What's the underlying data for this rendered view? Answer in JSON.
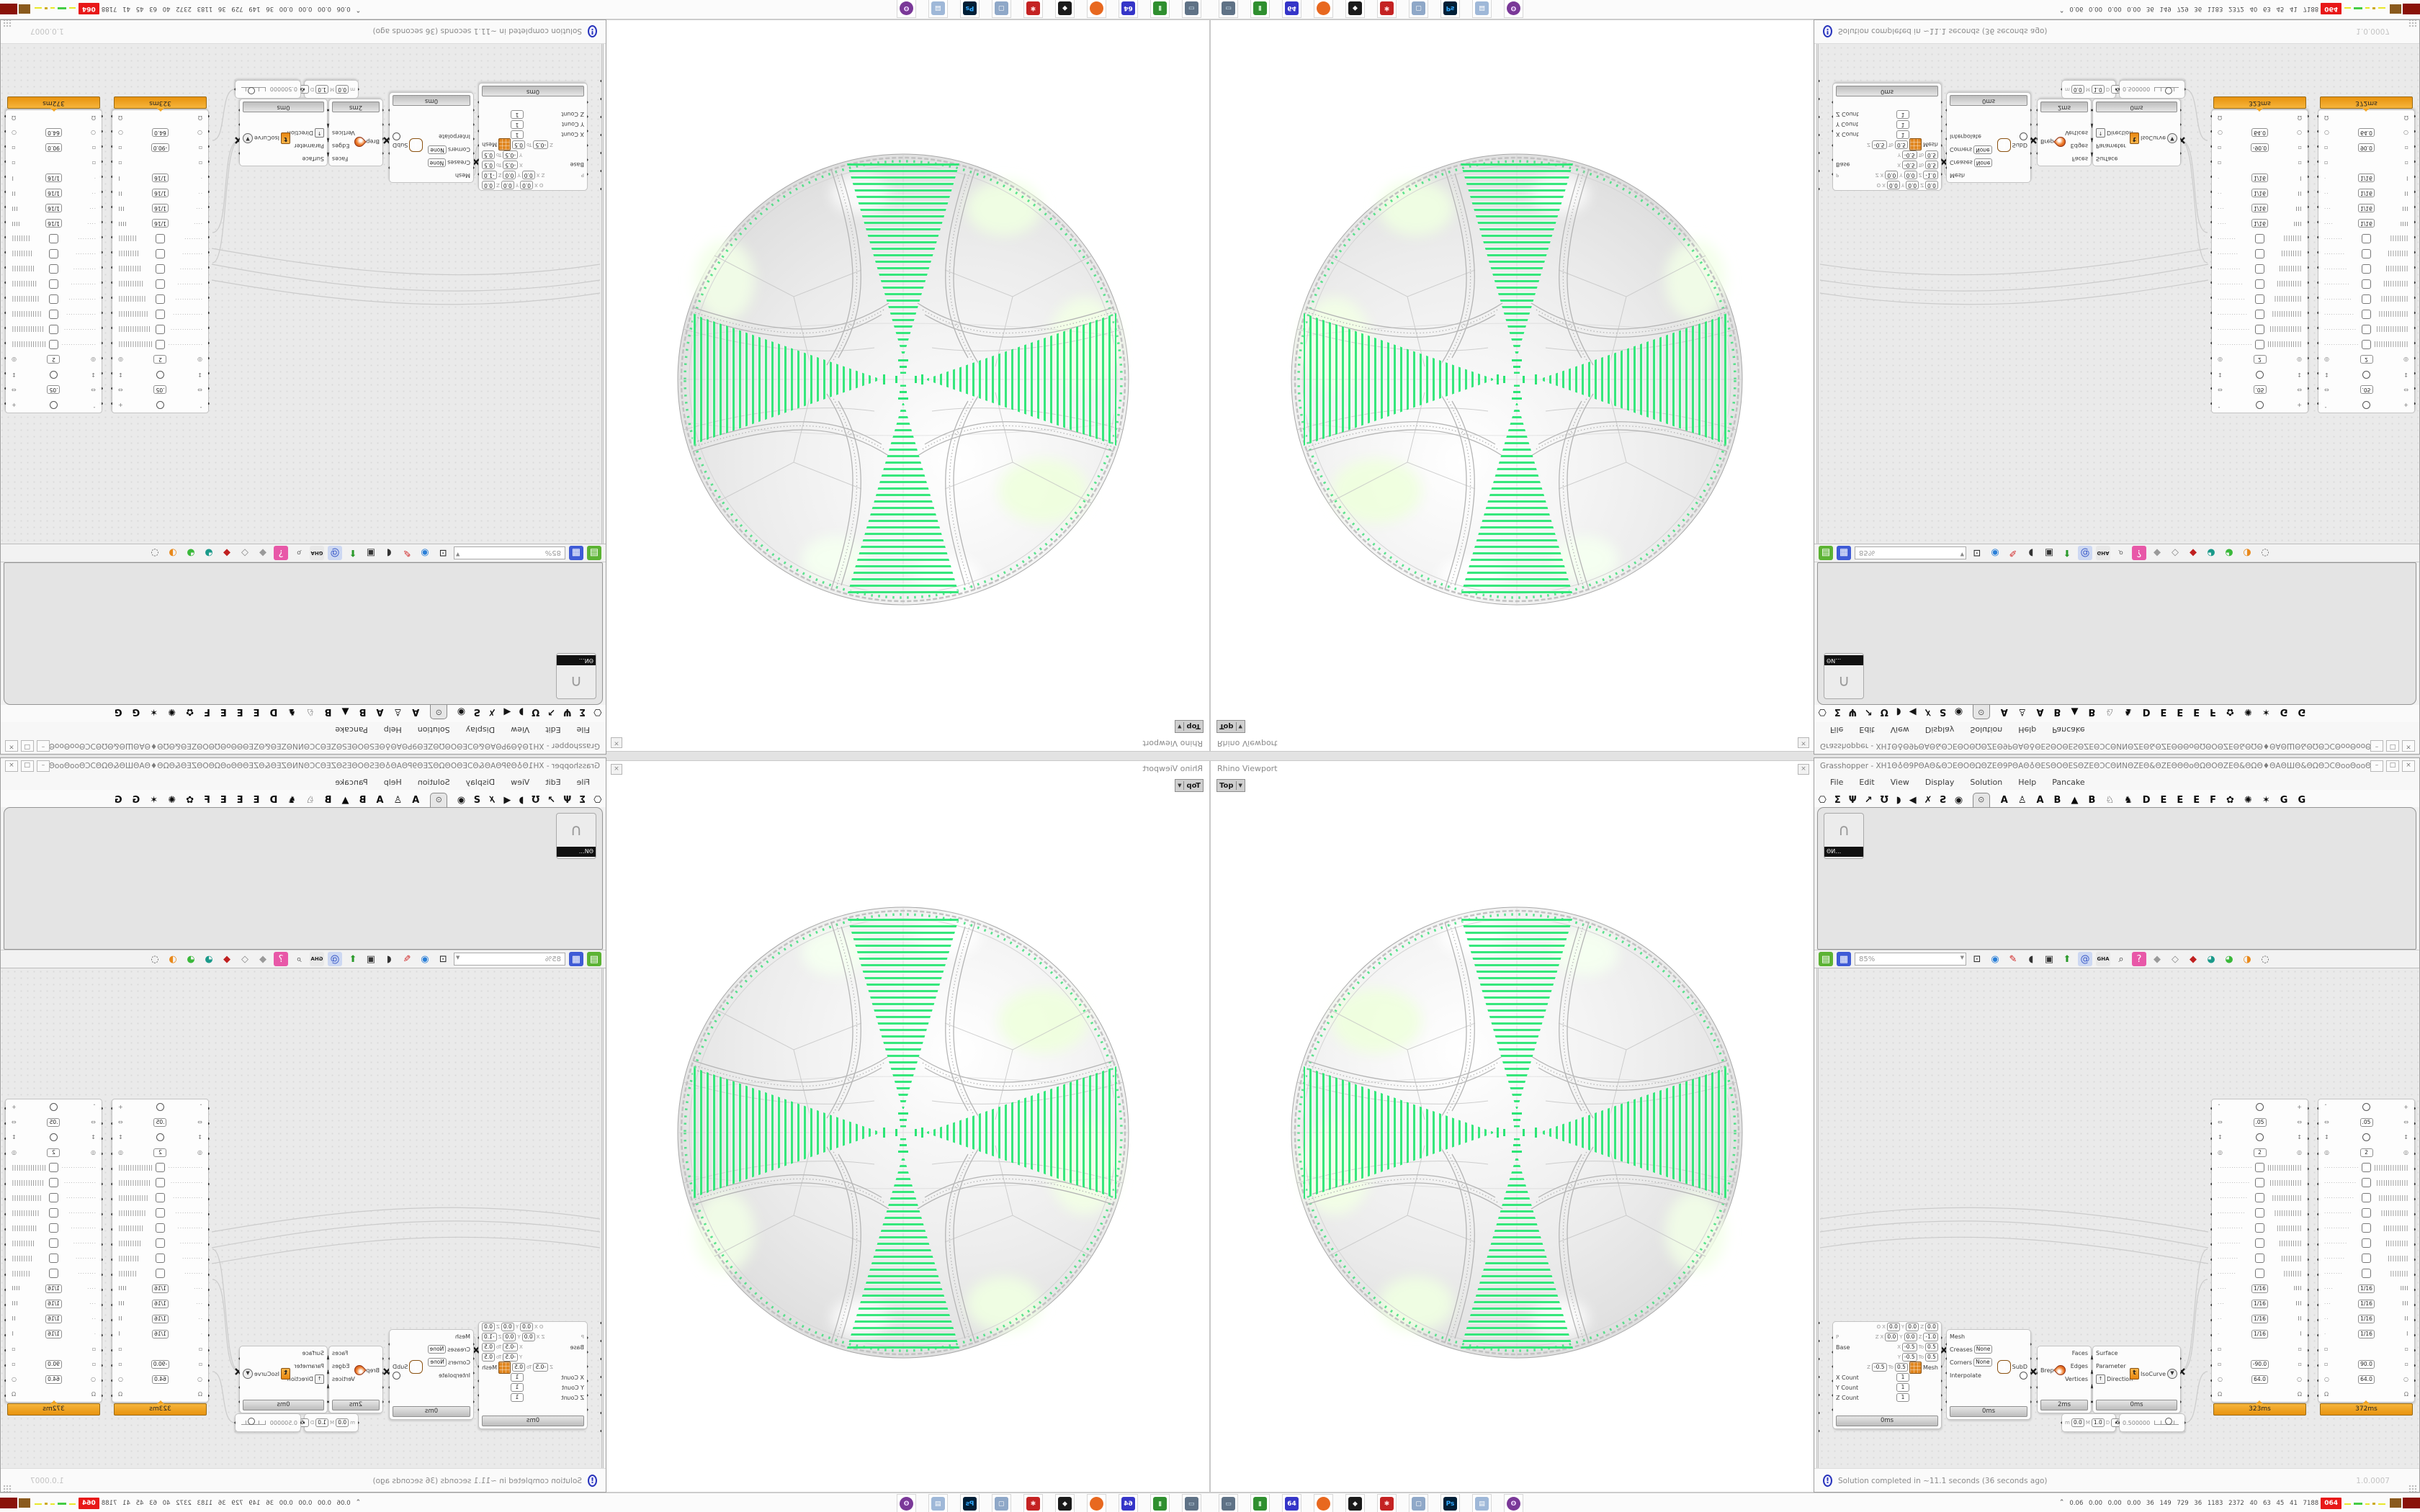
{
  "desktop": {
    "bg": "#e3e3e3"
  },
  "viewport": {
    "title": "Rhino Viewport",
    "close_glyph": "×",
    "view_tab": "Top",
    "dropdown_glyph": "▼"
  },
  "sphere": {
    "green": "#2be575",
    "wire": "#b9b9b9",
    "rim_green": "#3fdf7c"
  },
  "gh": {
    "title": "Grasshopper - XH1Θ♁Θ9ΡΘΑΘ&ΘϽΕΘΟΘΩΘΖΕΘ9ΡΘΑΘ♁ΘΕSΘΟΘΕSΘΖΕΘϽϹΘͶΝΘΖΕΘ&ΘΖΕΘΘΘοΘΩΘΟΘΖΕΘ&ΘΩΘ♦ΘΑΘШΘ&ΘΩΘϽϹΘοοΘοοΘϽΘοΘοΘοοΘοΘοοϽ…",
    "window_buttons": {
      "min": "–",
      "max": "□",
      "close": "×"
    },
    "menus": [
      "File",
      "Edit",
      "View",
      "Display",
      "Solution",
      "Help",
      "Pancake"
    ],
    "tab_glyphs": [
      "⎔",
      "Σ",
      "Ψ",
      "↗",
      "Ʊ",
      "◗",
      "◀",
      "✗",
      "Ƨ",
      "◉"
    ],
    "selected_tab_glyph": "⊙",
    "plugin_tabs": [
      "A",
      "♙",
      "A",
      "B",
      "▲",
      "B",
      "♘",
      "♞",
      "D",
      "E",
      "E",
      "E",
      "F",
      "✿",
      "✺",
      "✶",
      "G",
      "G"
    ],
    "shelf_item": {
      "icon": "∩",
      "label": "ΘͶ…"
    },
    "toolbar": {
      "zoom": "85%",
      "dropdown": "▼",
      "icons": [
        {
          "n": "open-file-icon",
          "g": "▤",
          "bg": "#5cb334",
          "fg": "#ffffff"
        },
        {
          "n": "save-file-icon",
          "g": "▦",
          "bg": "#3f5bd6",
          "fg": "#ffffff"
        },
        {
          "n": "zoom-extents-icon",
          "g": "⊡",
          "bg": "",
          "fg": "#1a1a1a"
        },
        {
          "n": "preview-eye-icon",
          "g": "◉",
          "bg": "",
          "fg": "#2a7fd8"
        },
        {
          "n": "sketch-pen-icon",
          "g": "✎",
          "bg": "",
          "fg": "#d02020"
        },
        {
          "n": "lamp-icon",
          "g": "◖",
          "bg": "",
          "fg": "#333333"
        },
        {
          "n": "camera-icon",
          "g": "▣",
          "bg": "",
          "fg": "#333333"
        },
        {
          "n": "axes-widget-icon",
          "g": "⬆",
          "bg": "",
          "fg": "#2a9a2a"
        },
        {
          "n": "internet-icon",
          "g": "@",
          "bg": "#cdd8f2",
          "fg": "#3858c8"
        },
        {
          "n": "gha-icon",
          "g": "GHA",
          "bg": "#e8e8e8",
          "fg": "#222222"
        },
        {
          "n": "find-component-icon",
          "g": "⌕",
          "bg": "",
          "fg": "#333333"
        },
        {
          "n": "unknown-box-icon",
          "g": "?",
          "bg": "#e858a8",
          "fg": "#ffffff"
        },
        {
          "n": "gem-gray-icon",
          "g": "◆",
          "bg": "",
          "fg": "#9a9a9a"
        },
        {
          "n": "gem-outline-icon",
          "g": "◇",
          "bg": "",
          "fg": "#888888"
        },
        {
          "n": "gem-red-icon",
          "g": "◆",
          "bg": "",
          "fg": "#c02020"
        },
        {
          "n": "shaded-mode-icon",
          "g": "◕",
          "bg": "",
          "fg": "#1a9a8a"
        },
        {
          "n": "wire-mode-icon",
          "g": "◕",
          "bg": "",
          "fg": "#3ab83a"
        },
        {
          "n": "render-mode-icon",
          "g": "◑",
          "bg": "",
          "fg": "#e8881a"
        },
        {
          "n": "selection-region-icon",
          "g": "◌",
          "bg": "",
          "fg": "#555555"
        }
      ]
    },
    "status": {
      "icon_glyph": "!",
      "text": "Solution completed in ~11.1 seconds (36 seconds ago)",
      "version": "1.0.0007"
    },
    "nodes": {
      "labels": {
        "o": "O",
        "p": "P",
        "x": "X",
        "y": "Y",
        "z": "Z",
        "to": "To"
      },
      "mesh_box": {
        "plane_rows": [
          [
            "0.0",
            "0.0",
            "0.0"
          ],
          [
            "0.0",
            "0.0",
            "-1.0"
          ]
        ],
        "base_label": "Base",
        "range_rows": [
          [
            "-0.5",
            "0.5"
          ],
          [
            "-0.5",
            "0.5"
          ],
          [
            "-0.5",
            "0.5"
          ]
        ],
        "counts": [
          {
            "label": "X Count",
            "v": "1"
          },
          {
            "label": "Y Count",
            "v": "1"
          },
          {
            "label": "Z Count",
            "v": "1"
          }
        ],
        "out": "Mesh",
        "ms": "0ms"
      },
      "subd": {
        "in1": "Mesh",
        "creases": "Creases",
        "creases_v": "None",
        "corners": "Corners",
        "corners_v": "None",
        "interp": "Interpolate",
        "out": "SubD",
        "ms": "0ms"
      },
      "deconstruct": {
        "in": "Brep",
        "outs": [
          "Faces",
          "Edges",
          "Vertices"
        ],
        "ms": "2ms"
      },
      "isocurve": {
        "ins": [
          "Surface",
          "Parameter",
          "Direction"
        ],
        "icon_t": "t",
        "out": "IsoCurve",
        "up_glyph": "↑",
        "down_glyph": "▼",
        "ms": "0ms"
      },
      "range": {
        "m": "m",
        "mv": "0.0",
        "M": "M",
        "Mv": "1.0",
        "D": "D",
        "Dv": "6"
      },
      "slider": {
        "value": "0.500000"
      },
      "tall": {
        "ms": [
          "323ms",
          "372ms"
        ],
        "angles": [
          "-90.0",
          "90.0"
        ],
        "top_rows": [
          {
            "l": "ˆ",
            "r": "+",
            "circ": true,
            "v": ""
          },
          {
            "l": "⇔",
            "r": "⇔",
            "circ": false,
            "v": ".05"
          },
          {
            "l": "↕",
            "r": "↕",
            "circ": true,
            "v": ""
          },
          {
            "l": "◎",
            "r": "◎",
            "circ": false,
            "v": "2"
          }
        ],
        "dot_rows": [
          15,
          14,
          13,
          12,
          11,
          10,
          9,
          8
        ],
        "frac_rows": [
          {
            "d": "····",
            "v": "1/16",
            "t": "ΙΙΙΙ"
          },
          {
            "d": "···",
            "v": "1/16",
            "t": "ΙΙΙ"
          },
          {
            "d": "··",
            "v": "1/16",
            "t": "ΙΙ"
          },
          {
            "d": "·",
            "v": "1/16",
            "t": "Ι"
          }
        ],
        "bot_rows": [
          {
            "l": "▫",
            "r": "▫",
            "v": ""
          },
          {
            "l": "▫",
            "r": "▫",
            "v": "@ANGLE"
          },
          {
            "l": "○",
            "r": "○",
            "v": "64.0"
          },
          {
            "l": "Ω",
            "r": "Ω",
            "v": ""
          }
        ]
      }
    }
  },
  "taskbar": {
    "apps": [
      {
        "n": "screen-app-icon",
        "bg": "#5f7286",
        "fg": "#cfe4f2",
        "g": "▭",
        "shape": "sq"
      },
      {
        "n": "green-card-app-icon",
        "bg": "#2f8f2f",
        "fg": "#bfe8bf",
        "g": "▮",
        "shape": "sq"
      },
      {
        "n": "floppy64-app-icon",
        "bg": "#3535c8",
        "fg": "#ffffff",
        "g": "64",
        "shape": "sq"
      },
      {
        "n": "firefox-icon",
        "bg": "#e8681f",
        "fg": "#ffd080",
        "g": "",
        "shape": "circle"
      },
      {
        "n": "inkscape-icon",
        "bg": "#1a1a1a",
        "fg": "#f0f0f0",
        "g": "◆",
        "shape": "sq"
      },
      {
        "n": "red-ornament-app-icon",
        "bg": "#c42222",
        "fg": "#ffe0e0",
        "g": "✱",
        "shape": "sq"
      },
      {
        "n": "window-app-icon",
        "bg": "#8fa8c8",
        "fg": "#ffffff",
        "g": "▢",
        "shape": "sq"
      },
      {
        "n": "photoshop-icon",
        "bg": "#001e36",
        "fg": "#31a8ff",
        "g": "Ps",
        "shape": "sq"
      },
      {
        "n": "blue-app-icon",
        "bg": "#9fb8d8",
        "fg": "#ffffff",
        "g": "▤",
        "shape": "sq"
      },
      {
        "n": "owl-app-icon",
        "bg": "#7a3898",
        "fg": "#f0d8ff",
        "g": "ʘ",
        "shape": "circle"
      }
    ],
    "tray": {
      "chevron": "ˆ",
      "stats": "0.06 0.00 0.00 0.00 36 149 729 36 1183 2372 40 63 45 41 7188",
      "badge": "064"
    }
  }
}
